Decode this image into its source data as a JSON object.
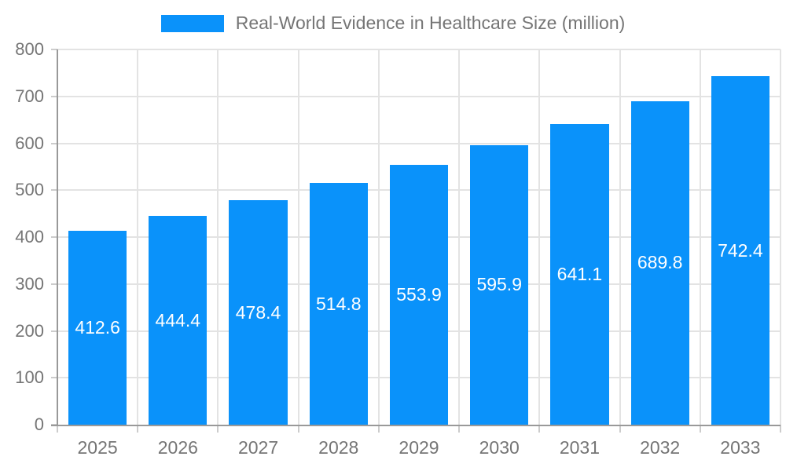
{
  "legend": {
    "label": "Real-World Evidence in Healthcare Size (million)"
  },
  "chart_data": {
    "type": "bar",
    "title": "Real-World Evidence in Healthcare Size (million)",
    "categories": [
      "2025",
      "2026",
      "2027",
      "2028",
      "2029",
      "2030",
      "2031",
      "2032",
      "2033"
    ],
    "values": [
      412.6,
      444.4,
      478.4,
      514.8,
      553.9,
      595.9,
      641.1,
      689.8,
      742.4
    ],
    "xlabel": "",
    "ylabel": "",
    "ylim": [
      0,
      800
    ],
    "yticks": [
      0,
      100,
      200,
      300,
      400,
      500,
      600,
      700,
      800
    ],
    "grid": true,
    "legend_position": "top",
    "colors": {
      "bar": "#0a92fa",
      "bar_label": "#ffffff",
      "axis": "#999999",
      "gridline": "#e3e3e3",
      "tick": "#cccccc",
      "text": "#757575"
    }
  }
}
